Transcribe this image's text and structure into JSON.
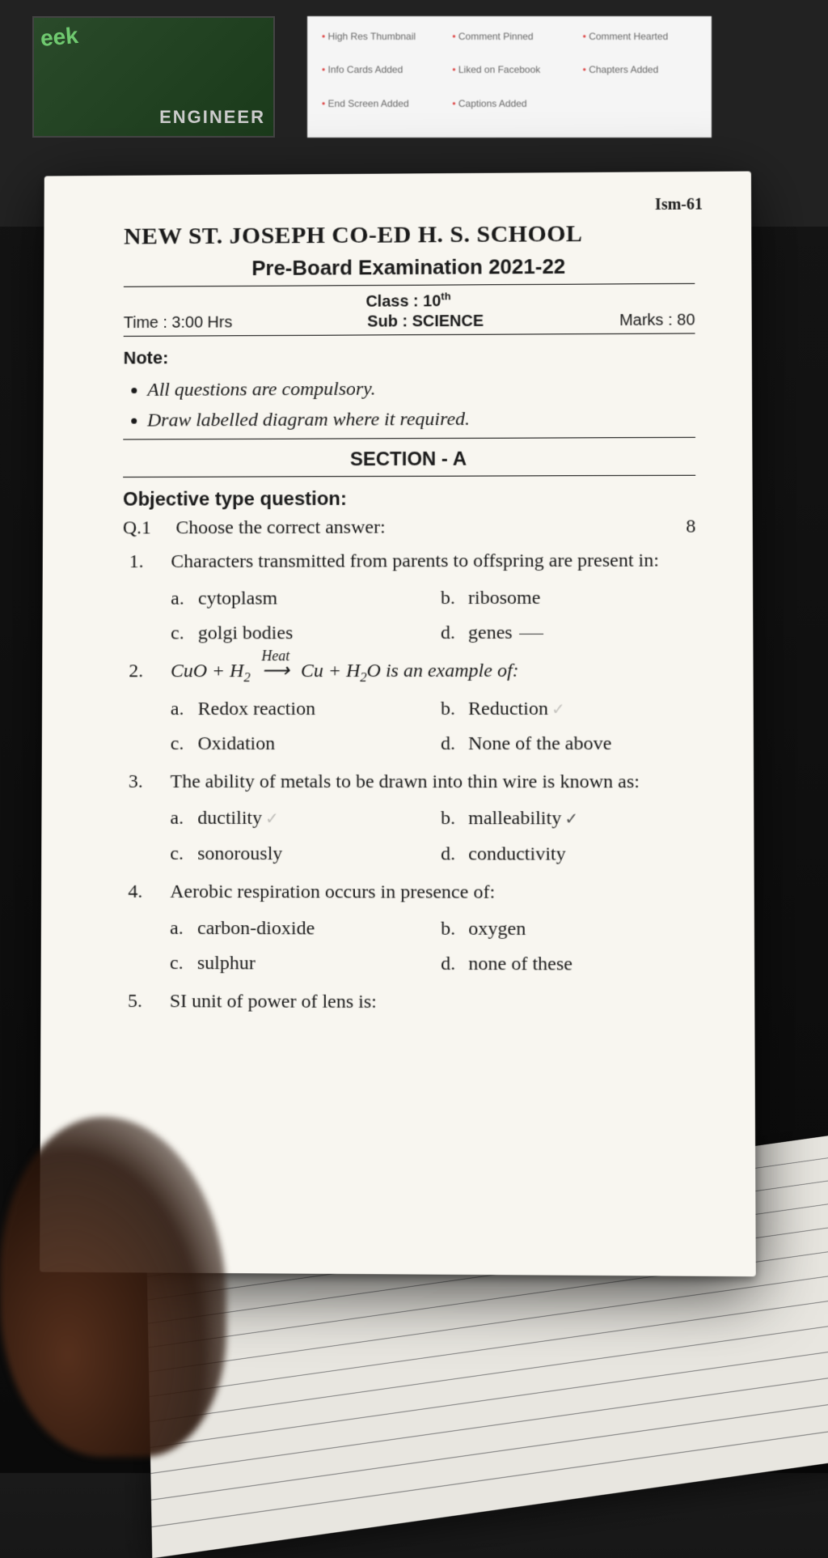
{
  "background": {
    "thumb_badge": "eek",
    "thumb_label": "ENGINEER",
    "panel_items": [
      "High Res Thumbnail",
      "Comment Pinned",
      "Comment Hearted",
      "Info Cards Added",
      "Liked on Facebook",
      "Chapters Added",
      "End Screen Added",
      "Captions Added"
    ]
  },
  "paper": {
    "code": "Ism-61",
    "school": "NEW ST. JOSEPH CO-ED H. S. SCHOOL",
    "exam": "Pre-Board Examination 2021-22",
    "class_label": "Class : 10",
    "class_suffix": "th",
    "time": "Time : 3:00 Hrs",
    "sub": "Sub : SCIENCE",
    "marks": "Marks : 80",
    "note_label": "Note:",
    "notes": [
      "All questions are compulsory.",
      "Draw labelled diagram where it required."
    ],
    "section": "SECTION - A",
    "obj_heading": "Objective type question:",
    "q1_label": "Q.1",
    "q1_text": "Choose the correct answer:",
    "q1_marks": "8",
    "questions": [
      {
        "num": "1.",
        "stem": "Characters transmitted from parents to offspring are present in:",
        "options": {
          "a": "cytoplasm",
          "b": "ribosome",
          "c": "golgi bodies",
          "d": "genes"
        },
        "mark_after": "d",
        "mark_type": "dash"
      },
      {
        "num": "2.",
        "stem_prefix": "CuO + H",
        "stem_sub1": "2",
        "stem_arrow_label": "Heat",
        "stem_mid": "Cu + H",
        "stem_sub2": "2",
        "stem_suffix": "O is an example of:",
        "options": {
          "a": "Redox reaction",
          "b": "Reduction",
          "c": "Oxidation",
          "d": "None of the above"
        },
        "mark_after": "b",
        "mark_type": "tick-faint"
      },
      {
        "num": "3.",
        "stem": "The ability of metals to be drawn into thin wire is known as:",
        "options": {
          "a": "ductility",
          "b": "malleability",
          "c": "sonorously",
          "d": "conductivity"
        },
        "mark_after": "a",
        "mark_type": "tick-faint",
        "mark_after2": "b",
        "mark_type2": "tick"
      },
      {
        "num": "4.",
        "stem": "Aerobic respiration occurs in presence of:",
        "options": {
          "a": "carbon-dioxide",
          "b": "oxygen",
          "c": "sulphur",
          "d": "none of these"
        }
      },
      {
        "num": "5.",
        "stem": "SI unit of power of lens is:"
      }
    ]
  },
  "colors": {
    "paper_bg": "#f8f6f0",
    "text": "#1a1a1a",
    "monitor_bg": "#222222",
    "eek_color": "#6fc96f"
  }
}
